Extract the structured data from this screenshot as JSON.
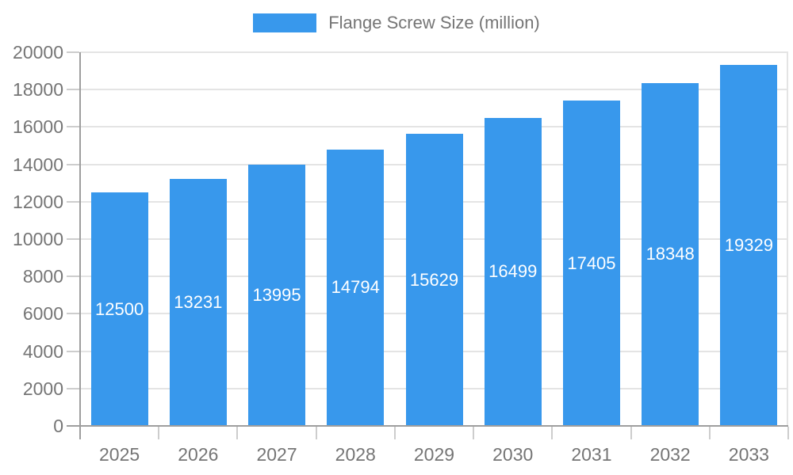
{
  "legend": {
    "label": "Flange Screw Size (million)"
  },
  "colors": {
    "bar": "#3898EC",
    "axis_line": "#9E9E9E",
    "grid_line": "#E4E4E4",
    "tick": "#CDCDCD",
    "label_text": "#757575",
    "bar_label_text": "#FFFFFF",
    "background": "#FFFFFF"
  },
  "chart_data": {
    "type": "bar",
    "title": "Flange Screw Size (million)",
    "categories": [
      "2025",
      "2026",
      "2027",
      "2028",
      "2029",
      "2030",
      "2031",
      "2032",
      "2033"
    ],
    "series": [
      {
        "name": "Flange Screw Size (million)",
        "values": [
          12500,
          13231,
          13995,
          14794,
          15629,
          16499,
          17405,
          18348,
          19329
        ]
      }
    ],
    "bar_value_labels": [
      "12500",
      "13231",
      "13995",
      "14794",
      "15629",
      "16499",
      "17405",
      "18348",
      "19329"
    ],
    "xlabel": "",
    "ylabel": "",
    "ylim": [
      0,
      20000
    ],
    "ytick_step": 2000,
    "ytick_labels": [
      "0",
      "2000",
      "4000",
      "6000",
      "8000",
      "10000",
      "12000",
      "14000",
      "16000",
      "18000",
      "20000"
    ],
    "grid": true,
    "legend_position": "top",
    "value_labels_inside_bars": true
  }
}
